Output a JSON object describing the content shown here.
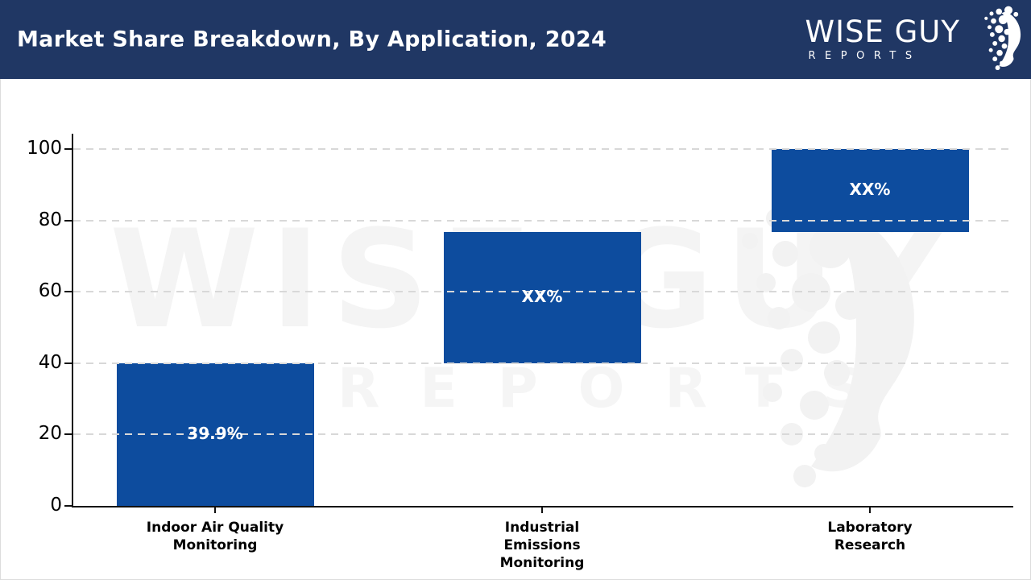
{
  "header": {
    "title": "Market Share Breakdown, By Application, 2024",
    "bg_color": "#203764",
    "logo": {
      "brand_top": "WISE GUY",
      "brand_bottom": "REPORTS"
    }
  },
  "watermark": {
    "brand_top": "WISE GUY",
    "brand_bottom": "REPORTS"
  },
  "chart_data": {
    "type": "bar",
    "subtype": "waterfall-breakdown",
    "title": "Market Share Breakdown, By Application, 2024",
    "categories": [
      "Indoor Air Quality\nMonitoring",
      "Industrial\nEmissions\nMonitoring",
      "Laboratory\nResearch"
    ],
    "segments": [
      {
        "category": "Indoor Air Quality Monitoring",
        "start": 0,
        "end": 39.9,
        "label": "39.9%"
      },
      {
        "category": "Industrial Emissions Monitoring",
        "start": 39.9,
        "end": 76.9,
        "label": "XX%"
      },
      {
        "category": "Laboratory Research",
        "start": 76.9,
        "end": 100,
        "label": "XX%"
      }
    ],
    "ylim": [
      0,
      100
    ],
    "yticks": [
      0,
      20,
      40,
      60,
      80,
      100
    ],
    "grid": "horizontal-dashed",
    "legend": "none",
    "bar_color": "#0d4c9e",
    "bar_label_color": "#ffffff",
    "axis_color": "#111111",
    "gridline_color": "#d8d8d8",
    "tick_label_color": "#000000"
  }
}
